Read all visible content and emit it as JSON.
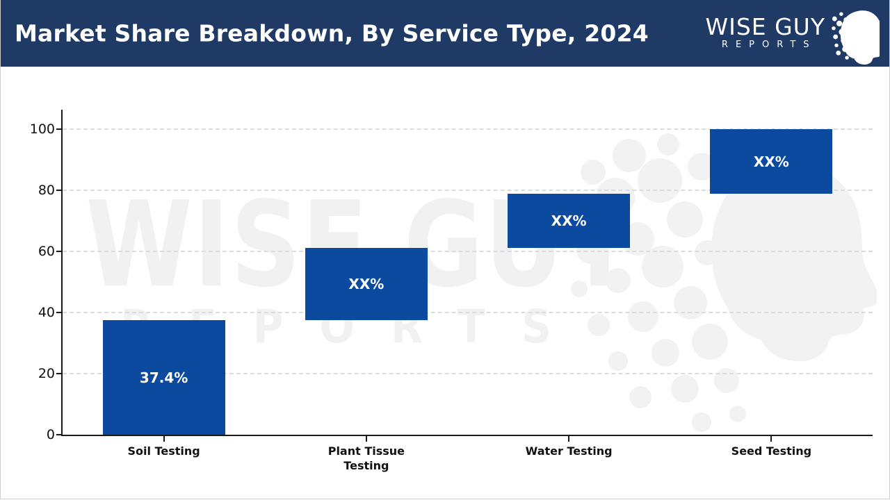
{
  "header": {
    "title": "Market Share Breakdown, By Service Type, 2024",
    "bg_color": "#203a66",
    "logo": {
      "line1": "WISE GUY",
      "line2": "REPORTS"
    }
  },
  "watermark": {
    "line1": "WISE GUY",
    "line2": "REPORTS",
    "color": "#f1f1f1"
  },
  "chart_data": {
    "type": "bar",
    "subtype": "waterfall",
    "title": "Market Share Breakdown, By Service Type, 2024",
    "categories": [
      "Soil Testing",
      "Plant Tissue\nTesting",
      "Water Testing",
      "Seed Testing"
    ],
    "segments": [
      {
        "category": "Soil Testing",
        "start": 0,
        "end": 37.4,
        "label": "37.4%"
      },
      {
        "category": "Plant Tissue Testing",
        "start": 37.4,
        "end": 61.2,
        "label": "XX%"
      },
      {
        "category": "Water Testing",
        "start": 61.2,
        "end": 78.8,
        "label": "XX%"
      },
      {
        "category": "Seed Testing",
        "start": 78.8,
        "end": 100,
        "label": "XX%"
      }
    ],
    "yticks": [
      0,
      20,
      40,
      60,
      80,
      100
    ],
    "ylim": [
      0,
      106
    ],
    "grid": true,
    "gridline_style": "dashed",
    "gridline_color": "#dcdcdc",
    "bar_color": "#0b4a9f",
    "bar_label_color": "#ffffff",
    "legend": "none"
  }
}
